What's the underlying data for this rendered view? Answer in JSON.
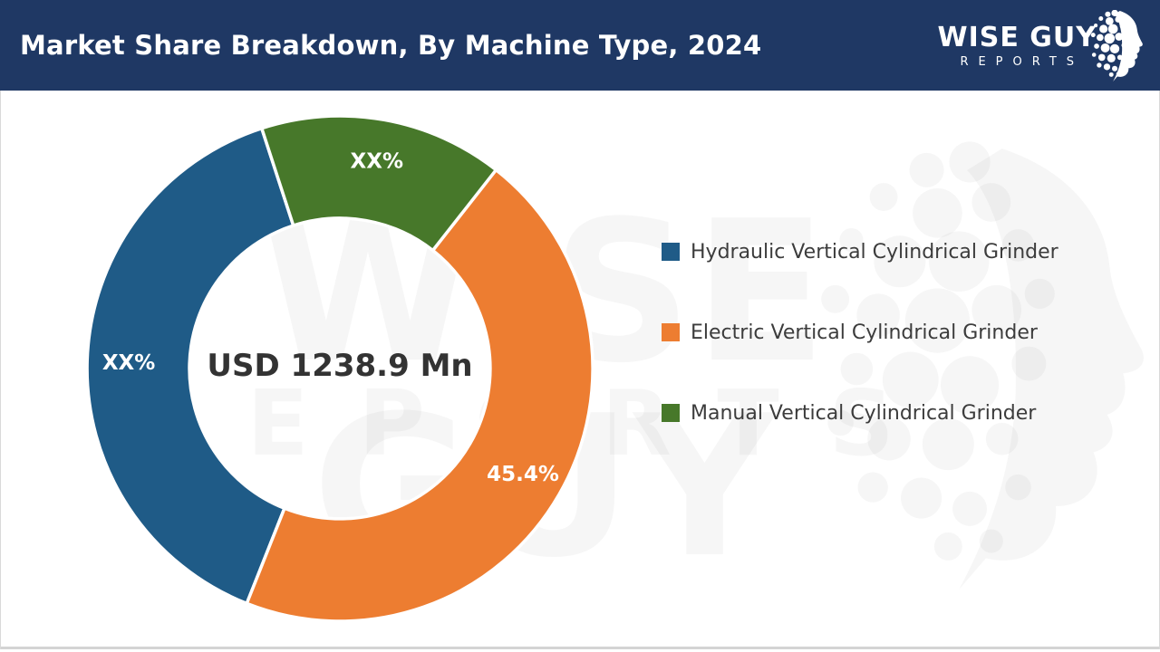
{
  "header": {
    "title": "Market Share Breakdown, By Machine Type, 2024",
    "logo": {
      "line1": "WISE GUY",
      "line2": "REPORTS"
    }
  },
  "icons": {
    "logo_head": "dotted-face-profile-icon"
  },
  "watermark": {
    "line1": "WISE GUY",
    "line2": "REPORTS"
  },
  "colors": {
    "header_bg": "#1F3864",
    "hydraulic_blue": "#1F5B87",
    "electric_orange": "#ED7D31",
    "manual_green": "#47782A",
    "border_gray": "#D4D4D4",
    "center_text": "#333333",
    "legend_text": "#3C3C3C"
  },
  "chart_data": {
    "type": "pie",
    "subtype": "donut",
    "title": "Market Share Breakdown, By Machine Type, 2024",
    "center_label": "USD 1238.9 Mn",
    "legend_position": "right",
    "start_angle_deg": 108,
    "direction": "counterclockwise",
    "segments": [
      {
        "name": "Hydraulic Vertical Cylindrical Grinder",
        "label": "XX%",
        "value_pct": 39.0,
        "color": "#1F5B87"
      },
      {
        "name": "Electric Vertical Cylindrical Grinder",
        "label": "45.4%",
        "value_pct": 45.4,
        "color": "#ED7D31"
      },
      {
        "name": "Manual Vertical Cylindrical Grinder",
        "label": "XX%",
        "value_pct": 15.6,
        "color": "#47782A"
      }
    ]
  }
}
